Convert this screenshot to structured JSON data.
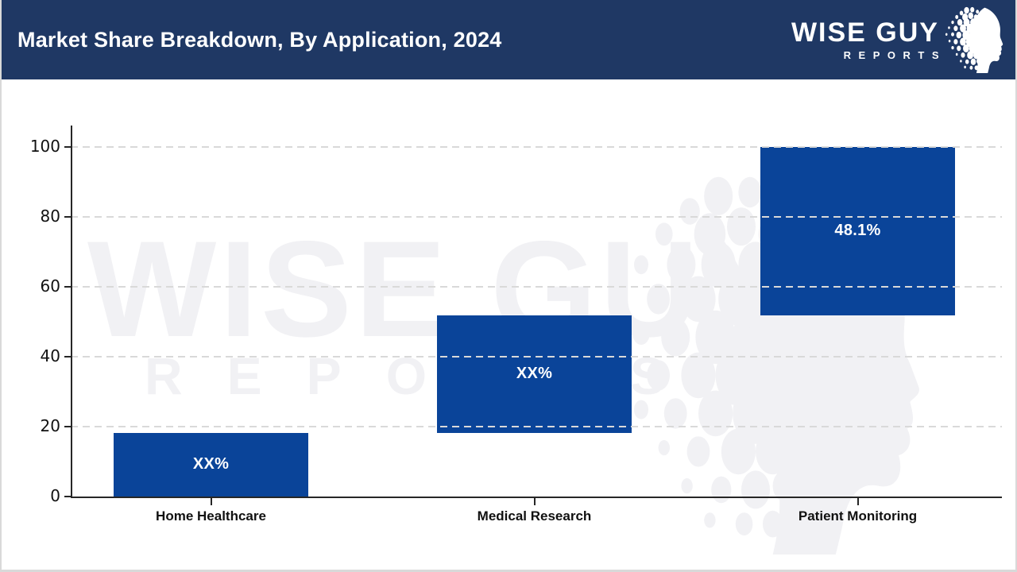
{
  "header": {
    "title": "Market Share Breakdown, By Application, 2024",
    "bg_color": "#1f3864",
    "brand": {
      "name": "WISE GUY",
      "sub": "REPORTS"
    }
  },
  "watermark": {
    "line1": "WISE GUY",
    "line2": "REPORTS"
  },
  "chart_data": {
    "type": "bar",
    "subtype": "waterfall",
    "title": "Market Share Breakdown, By Application, 2024",
    "categories": [
      "Home Healthcare",
      "Medical Research",
      "Patient Monitoring"
    ],
    "series": [
      {
        "name": "Market share by application",
        "segments": [
          {
            "category": "Home Healthcare",
            "start": 0,
            "end": 18.2,
            "label": "XX%"
          },
          {
            "category": "Medical Research",
            "start": 18.2,
            "end": 51.9,
            "label": "XX%"
          },
          {
            "category": "Patient Monitoring",
            "start": 51.9,
            "end": 100,
            "label": "48.1%"
          }
        ]
      }
    ],
    "xlabel": "",
    "ylabel": "",
    "ylim": [
      0,
      100
    ],
    "yticks": [
      0,
      20,
      40,
      60,
      80,
      100
    ],
    "grid": "horizontal dashed, drawn over bars",
    "legend": "none",
    "bar_color": "#0a4499",
    "bar_label_color": "#ffffff",
    "axis_color": "#262626",
    "grid_color": "#d9d9d9",
    "tick_label_color": "#111111"
  }
}
